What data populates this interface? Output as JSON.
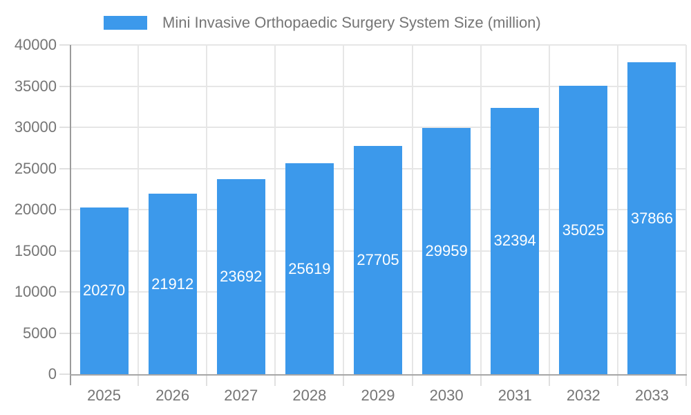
{
  "chart_data": {
    "type": "bar",
    "title": "Mini Invasive Orthopaedic Surgery System Size (million)",
    "xlabel": "",
    "ylabel": "",
    "categories": [
      "2025",
      "2026",
      "2027",
      "2028",
      "2029",
      "2030",
      "2031",
      "2032",
      "2033"
    ],
    "series": [
      {
        "name": "Mini Invasive Orthopaedic Surgery System Size (million)",
        "values": [
          20270,
          21912,
          23692,
          25619,
          27705,
          29959,
          32394,
          35025,
          37866
        ]
      }
    ],
    "value_labels_shown": true,
    "ylim": [
      0,
      40000
    ],
    "y_ticks": [
      0,
      5000,
      10000,
      15000,
      20000,
      25000,
      30000,
      35000,
      40000
    ],
    "grid": "horizontal and vertical gridlines on",
    "legend_position": "top"
  },
  "colors": {
    "bar": "#3C99EB",
    "value_label": "#FFFFFF",
    "axis_text": "#757575",
    "legend_text": "#757575",
    "grid_line": "#E6E6E6",
    "axis_line": "#9B9B9B",
    "background": "#FFFFFF"
  }
}
